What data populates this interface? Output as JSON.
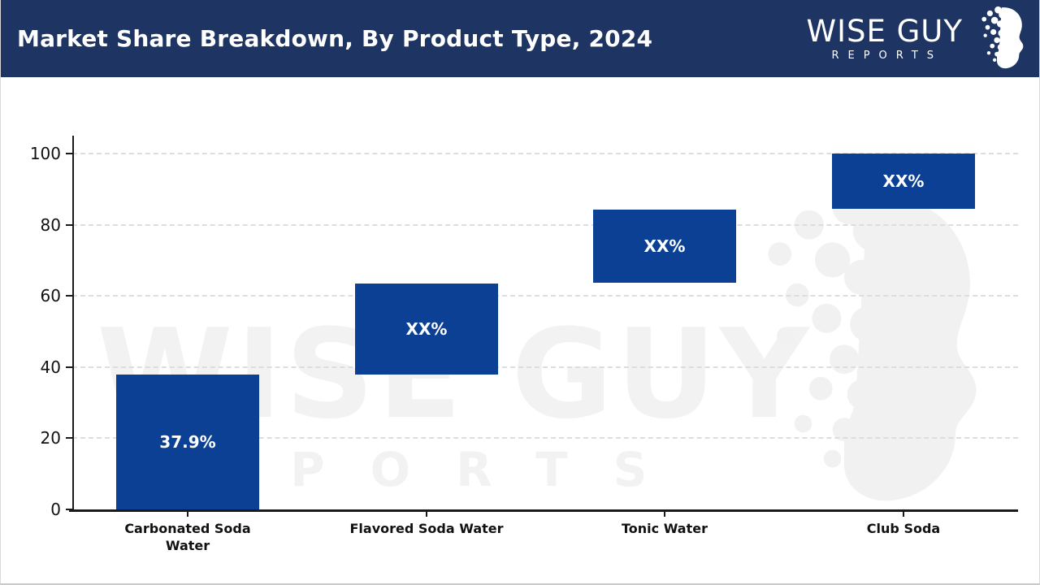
{
  "header": {
    "title": "Market Share Breakdown, By Product Type, 2024",
    "bg_color": "#1e3563",
    "brand": {
      "name": "WISE GUY",
      "tagline": "REPORTS"
    }
  },
  "watermark": {
    "name": "WISE GUY",
    "tagline": "REPORTS"
  },
  "chart_data": {
    "type": "bar",
    "subtype": "floating-segment-waterfall",
    "title": "Market Share Breakdown, By Product Type, 2024",
    "categories": [
      "Carbonated Soda Water",
      "Flavored Soda Water",
      "Tonic Water",
      "Club Soda"
    ],
    "series": [
      {
        "name": "Market share (%)",
        "segments": [
          {
            "category": "Carbonated Soda Water",
            "start": 0,
            "end": 37.9,
            "label": "37.9%"
          },
          {
            "category": "Flavored Soda Water",
            "start": 37.9,
            "end": 63.4,
            "label": "XX%"
          },
          {
            "category": "Tonic Water",
            "start": 63.7,
            "end": 84.3,
            "label": "XX%"
          },
          {
            "category": "Club Soda",
            "start": 84.5,
            "end": 100,
            "label": "XX%"
          }
        ]
      }
    ],
    "xlabel": "",
    "ylabel": "",
    "ylim": [
      0,
      105
    ],
    "yticks": [
      0,
      20,
      40,
      60,
      80,
      100
    ],
    "grid": "horizontal dashed",
    "legend": "none",
    "bar_color": "#0b4094",
    "bar_label_color": "#ffffff",
    "axis_color": "#1a1a1a"
  }
}
